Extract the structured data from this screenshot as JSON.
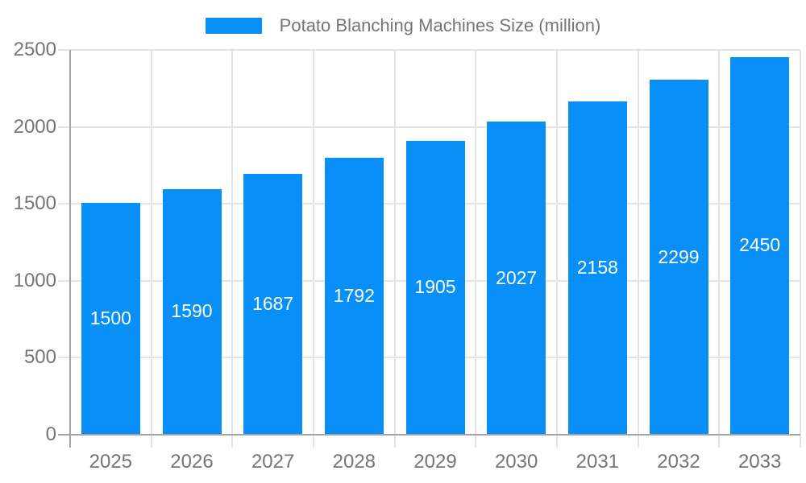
{
  "chart_data": {
    "type": "bar",
    "title": "Potato Blanching Machines Size (million)",
    "categories": [
      "2025",
      "2026",
      "2027",
      "2028",
      "2029",
      "2030",
      "2031",
      "2032",
      "2033"
    ],
    "series": [
      {
        "name": "Potato Blanching Machines Size (million)",
        "values": [
          1500,
          1590,
          1687,
          1792,
          1905,
          2027,
          2158,
          2299,
          2450
        ]
      }
    ],
    "bar_value_labels": [
      "1500",
      "1590",
      "1687",
      "1792",
      "1905",
      "2027",
      "2158",
      "2299",
      "2450"
    ],
    "xlabel": "",
    "ylabel": "",
    "ylim": [
      0,
      2500
    ],
    "y_ticks": [
      0,
      500,
      1000,
      1500,
      2000,
      2500
    ],
    "grid": true,
    "legend_position": "top-center",
    "colors": {
      "bar": "#0990f8",
      "bar_label": "#ffffff",
      "axis_text": "#757575",
      "legend_text": "#757575",
      "gridline": "#e4e4e4",
      "axis_line": "#a3a3a3",
      "background": "#ffffff"
    }
  }
}
